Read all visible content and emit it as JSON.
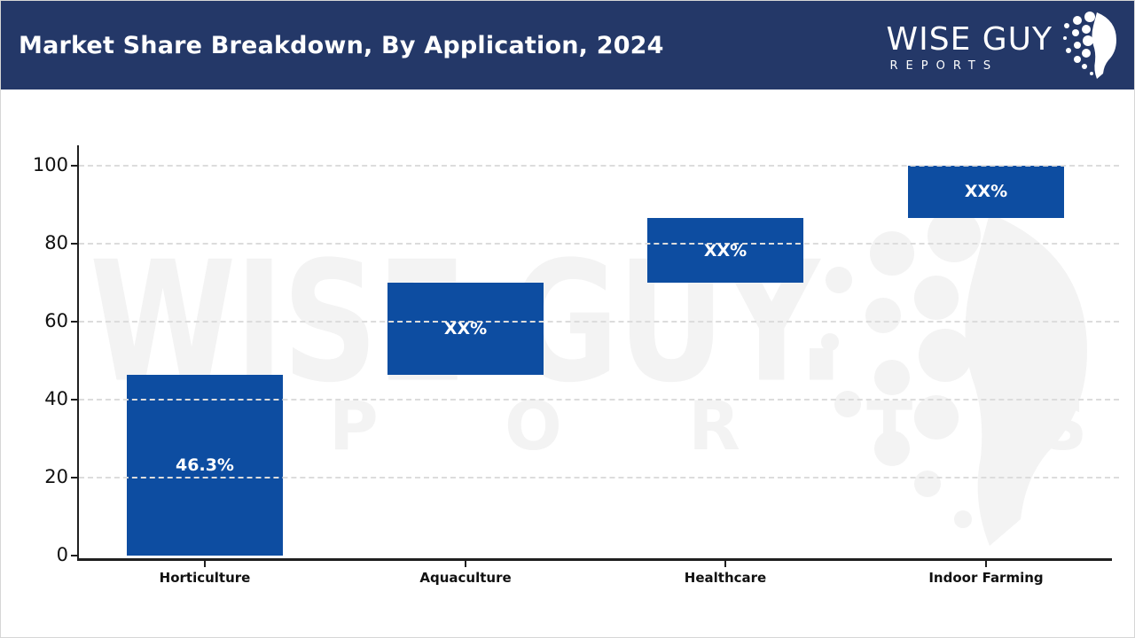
{
  "header": {
    "title": "Market Share Breakdown, By Application, 2024",
    "brand": {
      "line1": "WISE GUY",
      "line2": "REPORTS"
    }
  },
  "watermark": {
    "line1": "WISE GUY.",
    "line2": "P O R T S"
  },
  "colors": {
    "header_bg": "#243868",
    "bar": "#0d4da1",
    "grid": "#dcdcdc",
    "axis": "#1f1f1f",
    "bar_label": "#ffffff"
  },
  "chart_data": {
    "type": "bar",
    "variant": "floating-breakdown",
    "title": "Market Share Breakdown, By Application, 2024",
    "xlabel": "",
    "ylabel": "",
    "categories": [
      "Horticulture",
      "Aquaculture",
      "Healthcare",
      "Indoor Farming"
    ],
    "segments": [
      {
        "category": "Horticulture",
        "start": 0,
        "end": 46.3,
        "size": 46.3,
        "label": "46.3%"
      },
      {
        "category": "Aquaculture",
        "start": 46.3,
        "end": 69.9,
        "size": 23.6,
        "label": "XX%"
      },
      {
        "category": "Healthcare",
        "start": 69.9,
        "end": 86.5,
        "size": 16.6,
        "label": "XX%"
      },
      {
        "category": "Indoor Farming",
        "start": 86.5,
        "end": 100.1,
        "size": 13.6,
        "label": "XX%"
      }
    ],
    "ylim": [
      0,
      105
    ],
    "yticks": [
      0,
      20,
      40,
      60,
      80,
      100
    ],
    "grid": "horizontal-dashed",
    "legend": "none",
    "bar_color": "#0d4da1",
    "value_label_color": "#ffffff"
  }
}
